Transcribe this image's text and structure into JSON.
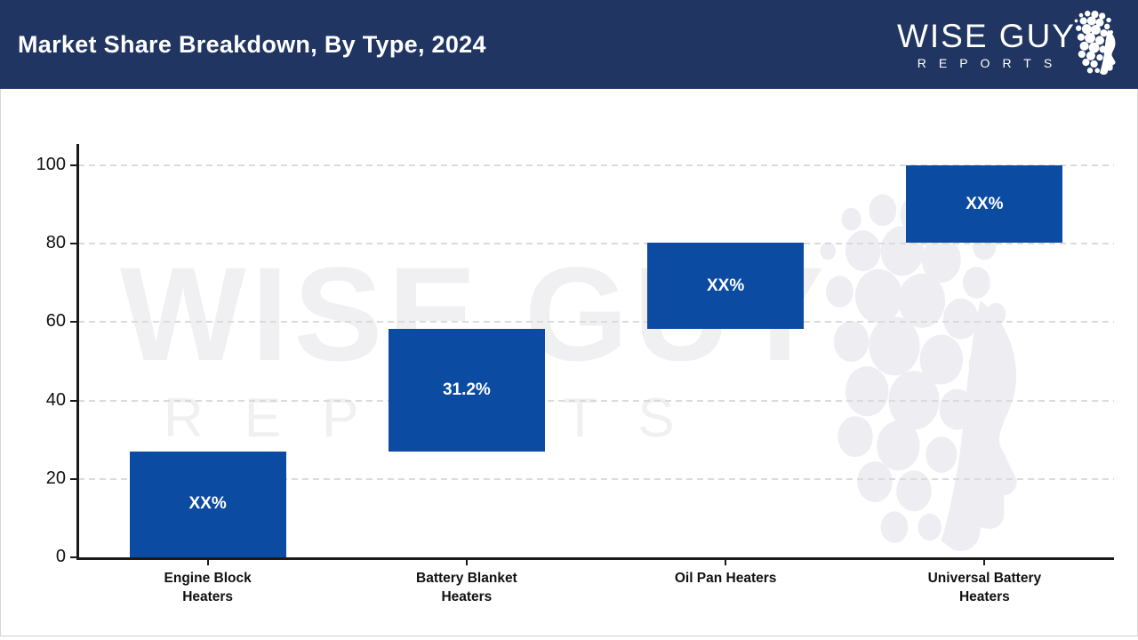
{
  "header": {
    "title": "Market Share Breakdown, By Type, 2024",
    "logo": {
      "line1": "WISE GUY",
      "line2": "REPORTS"
    }
  },
  "watermark": {
    "line1": "WISE GUY",
    "line2": "REPORTS"
  },
  "colors": {
    "header_bg": "#203562",
    "bar": "#0c4ba2",
    "bar_label": "#ffffff",
    "grid": "#dbdbdb",
    "axis": "#1a1a1a",
    "tick_label": "#111111",
    "watermark": "#f0f0f3"
  },
  "chart_data": {
    "type": "bar",
    "subtype": "floating-segment-waterfall",
    "title": "Market Share Breakdown, By Type, 2024",
    "categories": [
      "Engine Block Heaters",
      "Battery Blanket Heaters",
      "Oil Pan Heaters",
      "Universal Battery Heaters"
    ],
    "category_label_lines": [
      [
        "Engine Block",
        "Heaters"
      ],
      [
        "Battery Blanket",
        "Heaters"
      ],
      [
        "Oil Pan Heaters"
      ],
      [
        "Universal Battery",
        "Heaters"
      ]
    ],
    "segments": [
      {
        "category": "Engine Block Heaters",
        "start": 0,
        "end": 27,
        "height": 27,
        "label": "XX%"
      },
      {
        "category": "Battery Blanket Heaters",
        "start": 27,
        "end": 58.2,
        "height": 31.2,
        "label": "31.2%"
      },
      {
        "category": "Oil Pan Heaters",
        "start": 58.2,
        "end": 80.2,
        "height": 22,
        "label": "XX%"
      },
      {
        "category": "Universal Battery Heaters",
        "start": 80.2,
        "end": 100,
        "height": 19.8,
        "label": "XX%"
      }
    ],
    "xlabel": "",
    "ylabel": "",
    "ylim": [
      0,
      100
    ],
    "yticks": [
      0,
      20,
      40,
      60,
      80,
      100
    ],
    "grid": "horizontal-dashed",
    "legend": false
  }
}
